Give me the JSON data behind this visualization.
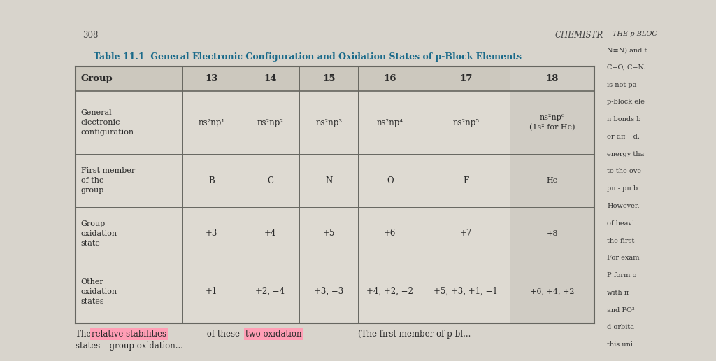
{
  "title": "Table 11.1  General Electronic Configuration and Oxidation States of p-Block Elements",
  "page_number": "308",
  "chemist_label": "CHEMISTR",
  "bg_color": "#d8d4cc",
  "page_color": "#e8e4dc",
  "table_bg": "#dedad2",
  "header_bg": "#ccc8be",
  "col18_bg": "#d0ccc4",
  "line_color": "#666660",
  "title_color": "#1a6a8a",
  "text_color": "#2a2a2a",
  "header_text_color": "#2a2a2a",
  "columns": [
    "Group",
    "13",
    "14",
    "15",
    "16",
    "17",
    "18"
  ],
  "rows": [
    {
      "label": "General\nelectronic\nconfiguration",
      "values": [
        "ns²np¹",
        "ns²np²",
        "ns²np³",
        "ns²np⁴",
        "ns²np⁵",
        "ns²np⁶\n(1s² for He)"
      ]
    },
    {
      "label": "First member\nof the\ngroup",
      "values": [
        "B",
        "C",
        "N",
        "O",
        "F",
        "He"
      ]
    },
    {
      "label": "Group\noxidation\nstate",
      "values": [
        "+3",
        "+4",
        "+5",
        "+6",
        "+7",
        "+8"
      ]
    },
    {
      "label": "Other\noxidation\nstates",
      "values": [
        "+1",
        "+2, −4",
        "+3, −3",
        "+4, +2, −2",
        "+5, +3, +1, −1",
        "+6, +4, +2"
      ]
    }
  ],
  "bottom_text_1": "The ",
  "bottom_highlight_1": "relative stabilities",
  "bottom_text_2": " of these ",
  "bottom_highlight_2": "two oxidation",
  "bottom_text_3": "",
  "bottom_text_left2": "states – group oxidation...",
  "bottom_right": "(The first member of p-bl...",
  "right_side_text": [
    "N≡N) and",
    "C=O, C=N.",
    "is not pa",
    "p-block ele",
    "π bonds b",
    "or dπ −d...",
    "energy tha",
    "to the ove",
    "pπ•pπ b",
    "However,",
    "of heavi",
    "the first",
    "For exam",
    "P form o",
    "with π −",
    "and PO³",
    "d orbita",
    "this uni"
  ],
  "the_p_bloch": "THE p-BLOC"
}
